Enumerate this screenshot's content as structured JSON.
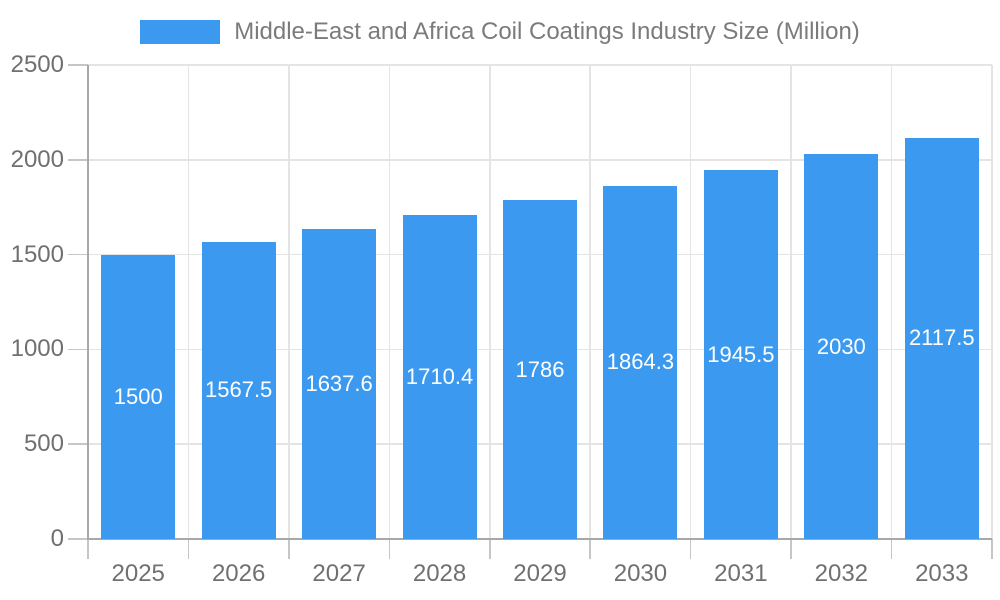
{
  "legend": {
    "label": "Middle-East and Africa Coil Coatings Industry Size (Million)",
    "swatch_color": "#3B99F0"
  },
  "chart_data": {
    "type": "bar",
    "title": "Middle-East and Africa Coil Coatings Industry Size (Million)",
    "categories": [
      "2025",
      "2026",
      "2027",
      "2028",
      "2029",
      "2030",
      "2031",
      "2032",
      "2033"
    ],
    "values": [
      1500,
      1567.5,
      1637.6,
      1710.4,
      1786,
      1864.3,
      1945.5,
      2030,
      2117.5
    ],
    "value_labels": [
      "1500",
      "1567.5",
      "1637.6",
      "1710.4",
      "1786",
      "1864.3",
      "1945.5",
      "2030",
      "2117.5"
    ],
    "xlabel": "",
    "ylabel": "",
    "ylim": [
      0,
      2500
    ],
    "ytick_interval": 500,
    "ytick_labels": [
      "0",
      "500",
      "1000",
      "1500",
      "2000",
      "2500"
    ],
    "grid": true,
    "legend_position": "top",
    "bar_color": "#3B99F0",
    "bar_label_color": "#ffffff",
    "gridline_color": "#e4e4e4",
    "axis_line_color": "#a8a8a8",
    "tick_color": "#c6c6c6",
    "axis_text_color": "#707070",
    "legend_text_color": "#7b7b7b"
  }
}
